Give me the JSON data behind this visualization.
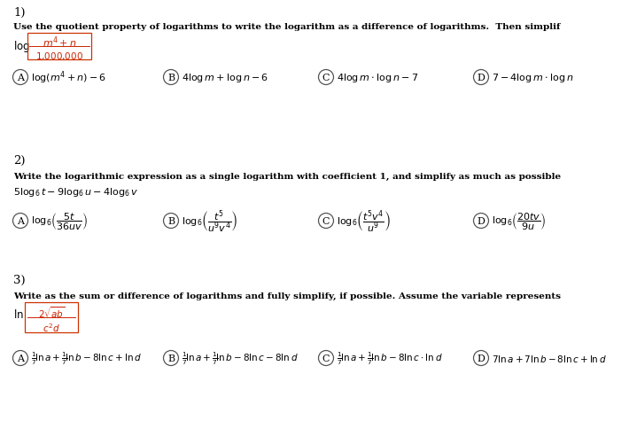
{
  "background_color": "#ffffff",
  "fig_width": 7.1,
  "fig_height": 5.02,
  "dpi": 100,
  "q1_number": "1)",
  "q1_instruction": "Use the quotient property of logarithms to write the logarithm as a difference of logarithms.  Then simplif",
  "q2_number": "2)",
  "q2_instruction": "Write the logarithmic expression as a single logarithm with coefficient 1, and simplify as much as possible",
  "q2_subexpr": "5 log$_6$$t$ – 9 log$_6$$u$ – 4 log$_6$$v$",
  "q3_number": "3)",
  "q3_instruction": "Write as the sum or difference of logarithms and fully simplify, if possible. Assume the variable represents",
  "circle_color": "#666666",
  "text_color": "#000000",
  "box_color": "#cc3300"
}
